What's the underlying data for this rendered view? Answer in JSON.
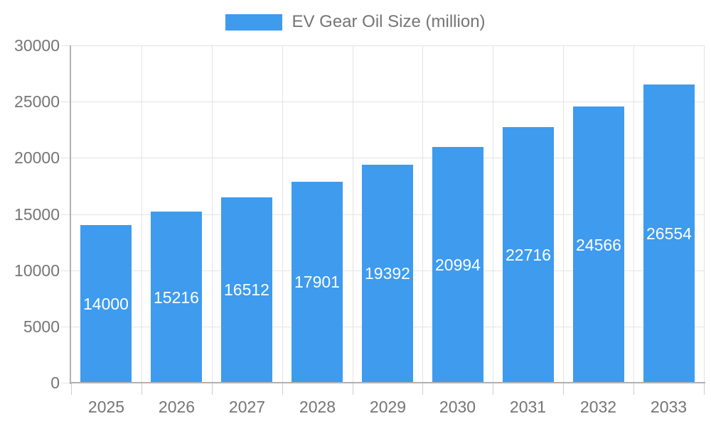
{
  "legend": {
    "label": "EV Gear Oil Size (million)"
  },
  "chart_data": {
    "type": "bar",
    "title": "EV Gear Oil Size (million)",
    "categories": [
      "2025",
      "2026",
      "2027",
      "2028",
      "2029",
      "2030",
      "2031",
      "2032",
      "2033"
    ],
    "values": [
      14000,
      15216,
      16512,
      17901,
      19392,
      20994,
      22716,
      24566,
      26554
    ],
    "series": [
      {
        "name": "EV Gear Oil Size (million)",
        "values": [
          14000,
          15216,
          16512,
          17901,
          19392,
          20994,
          22716,
          24566,
          26554
        ]
      }
    ],
    "xlabel": "",
    "ylabel": "",
    "ylim": [
      0,
      30000
    ],
    "yticks": [
      0,
      5000,
      10000,
      15000,
      20000,
      25000,
      30000
    ],
    "grid": true,
    "legend_position": "top",
    "bar_labels_inside": true,
    "colors": {
      "bar": "#3e9bee",
      "bar_label": "#ffffff",
      "axis_text": "#757575",
      "grid_line": "#e3e3e3",
      "axis_line": "#b0b0b0",
      "tick_line": "#cccccc"
    }
  }
}
